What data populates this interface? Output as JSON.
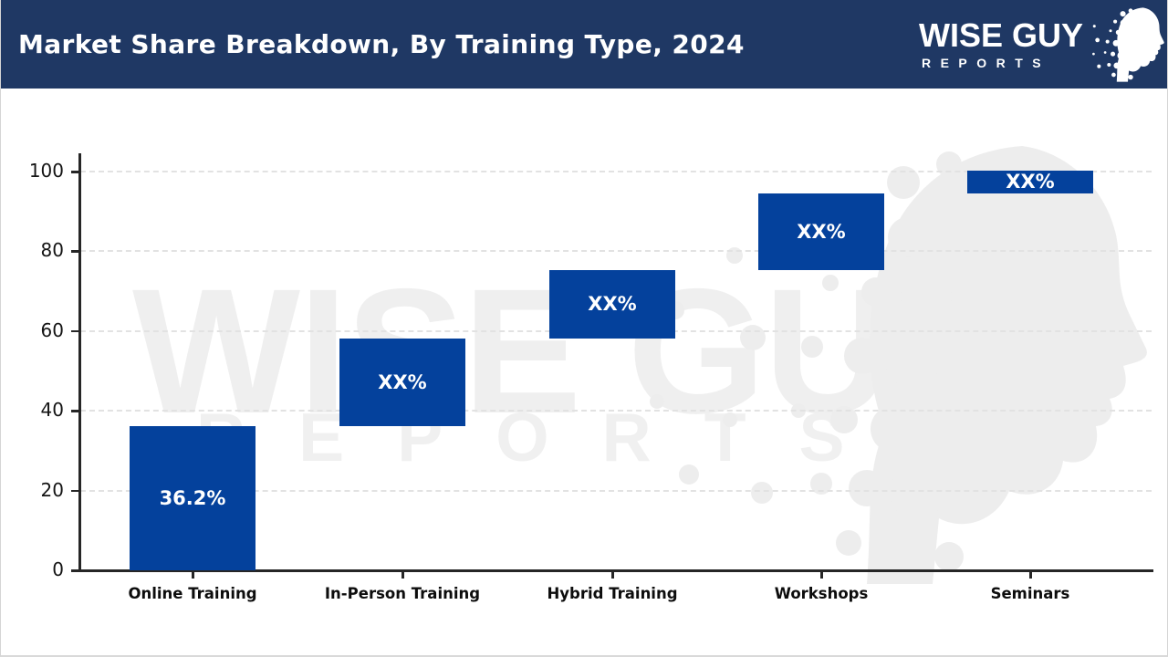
{
  "header": {
    "title": "Market Share Breakdown, By Training Type, 2024",
    "logo": {
      "line1": "WISE GUY",
      "line2": "REPORTS"
    }
  },
  "watermark": {
    "line1": "WISE GUY",
    "line2": "REPORTS"
  },
  "colors": {
    "header_bg": "#1F3864",
    "bar_blue": "#04419C",
    "bar_label_text": "#FFFFFF",
    "axis": "#262626",
    "gridline": "#E2E2E2",
    "watermark_gray": "#EFEFEF",
    "page_border": "#D5D5D5"
  },
  "chart_data": {
    "type": "bar",
    "subtype": "waterfall-floating-bars",
    "title": "Market Share Breakdown, By Training Type, 2024",
    "categories": [
      "Online Training",
      "In-Person Training",
      "Hybrid Training",
      "Workshops",
      "Seminars"
    ],
    "segments": [
      {
        "category": "Online Training",
        "start": 0,
        "end": 36.2,
        "label": "36.2%"
      },
      {
        "category": "In-Person Training",
        "start": 36.2,
        "end": 58.2,
        "label": "XX%"
      },
      {
        "category": "Hybrid Training",
        "start": 58.2,
        "end": 75.2,
        "label": "XX%"
      },
      {
        "category": "Workshops",
        "start": 75.2,
        "end": 94.5,
        "label": "XX%"
      },
      {
        "category": "Seminars",
        "start": 94.5,
        "end": 100.3,
        "label": "XX%"
      }
    ],
    "xlabel": "",
    "ylabel": "",
    "ylim": [
      0,
      100
    ],
    "yticks": [
      0,
      20,
      40,
      60,
      80,
      100
    ],
    "grid": "horizontal-dashed",
    "legend": "none"
  }
}
